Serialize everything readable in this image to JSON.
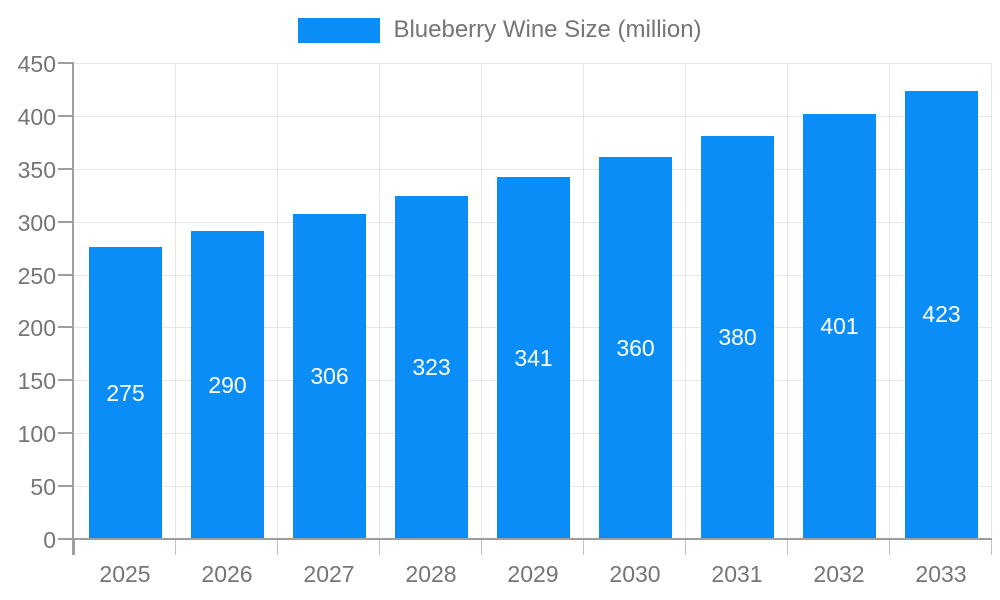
{
  "legend": {
    "label": "Blueberry Wine Size (million)"
  },
  "chart_data": {
    "type": "bar",
    "title": "Blueberry Wine Size (million)",
    "categories": [
      "2025",
      "2026",
      "2027",
      "2028",
      "2029",
      "2030",
      "2031",
      "2032",
      "2033"
    ],
    "values": [
      275,
      290,
      306,
      323,
      341,
      360,
      380,
      401,
      423
    ],
    "series": [
      {
        "name": "Blueberry Wine Size (million)",
        "values": [
          275,
          290,
          306,
          323,
          341,
          360,
          380,
          401,
          423
        ]
      }
    ],
    "xlabel": "",
    "ylabel": "",
    "ylim": [
      0,
      450
    ],
    "ytick_step": 50,
    "yticks": [
      0,
      50,
      100,
      150,
      200,
      250,
      300,
      350,
      400,
      450
    ],
    "grid": true,
    "legend_position": "top",
    "value_label_position": "inside-center",
    "colors": {
      "bar": "#0b8df8",
      "axis": "#9e9e9e",
      "x_tick": "#c2c2c2",
      "grid": "#e6e6e6",
      "text": "#757575",
      "value_label": "#ffffff",
      "background": "#ffffff"
    }
  }
}
